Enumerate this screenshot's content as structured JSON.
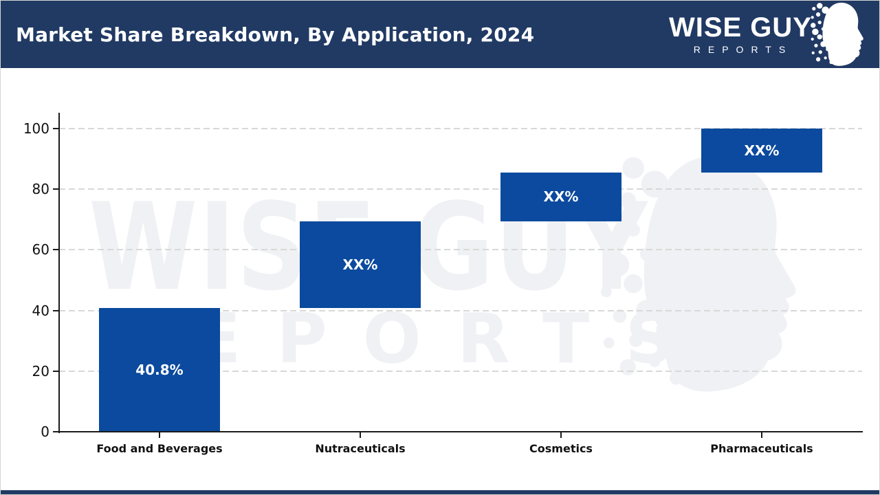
{
  "header": {
    "title": "Market Share Breakdown, By Application, 2024",
    "logo": {
      "line1": "WISE GUY",
      "line2": "REPORTS"
    }
  },
  "watermark": {
    "line1": "WISE GUY",
    "line2": "REPORTS"
  },
  "colors": {
    "header_bg": "#213a64",
    "footer_bg": "#213a64",
    "bar": "#0b4a9e",
    "bar_label": "#ffffff",
    "grid": "#d8d8d8",
    "axis": "#1a1a1a",
    "watermark": "#f0f1f4"
  },
  "chart_data": {
    "type": "bar",
    "subtype": "waterfall",
    "title": "Market Share Breakdown, By Application, 2024",
    "categories": [
      "Food and Beverages",
      "Nutraceuticals",
      "Cosmetics",
      "Pharmaceuticals"
    ],
    "segments": [
      {
        "start": 0,
        "end": 40.8,
        "label": "40.8%"
      },
      {
        "start": 40.8,
        "end": 69.4,
        "label": "XX%"
      },
      {
        "start": 69.4,
        "end": 85.5,
        "label": "XX%"
      },
      {
        "start": 85.5,
        "end": 100,
        "label": "XX%"
      }
    ],
    "values_estimated_pct": [
      40.8,
      28.6,
      16.1,
      14.5
    ],
    "yticks": [
      0,
      20,
      40,
      60,
      80,
      100
    ],
    "ylim": [
      0,
      105
    ],
    "xlabel": "",
    "ylabel": "",
    "grid": "horizontal-dashed",
    "legend": "none"
  }
}
